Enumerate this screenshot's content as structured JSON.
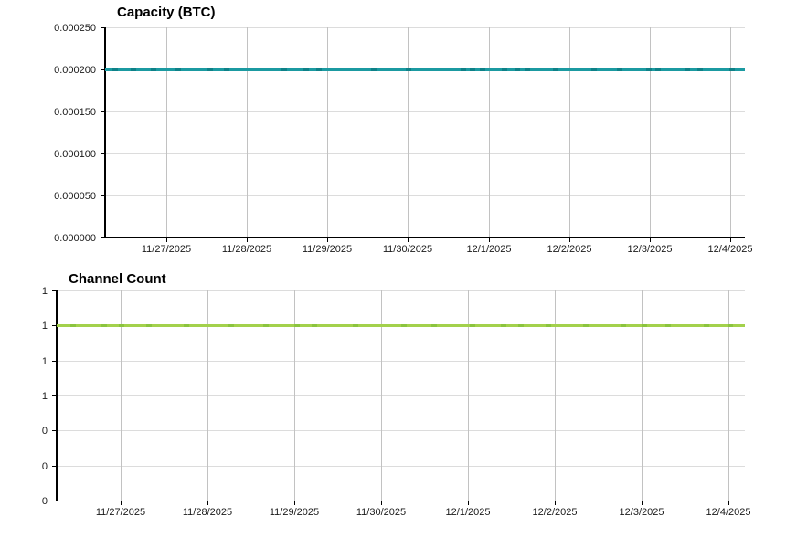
{
  "page": {
    "background": "#ffffff"
  },
  "style": {
    "axis_color": "#000000",
    "tick_label_color": "#1a1a1a",
    "h_grid_color": "#dcdcdc",
    "v_grid_color": "#c2c2c2",
    "title_color": "#000000"
  },
  "chart_data": [
    {
      "type": "line",
      "title": "Capacity (BTC)",
      "xlabel": "",
      "ylabel": "",
      "ylim": [
        0,
        0.00025
      ],
      "grid": true,
      "legend": false,
      "y_tick_labels": [
        "0.000250",
        "0.000200",
        "0.000150",
        "0.000100",
        "0.000050",
        "0.000000"
      ],
      "x_tick_labels": [
        "11/27/2025",
        "11/28/2025",
        "11/29/2025",
        "11/30/2025",
        "12/1/2025",
        "12/2/2025",
        "12/3/2025",
        "12/4/2025"
      ],
      "series": [
        {
          "name": "Capacity (BTC)",
          "constant_value": 0.0002,
          "color": "#1b9aa1",
          "marker_color": "#0e8188",
          "marker_fracs": [
            0.012,
            0.04,
            0.072,
            0.11,
            0.16,
            0.185,
            0.275,
            0.31,
            0.33,
            0.415,
            0.47,
            0.555,
            0.57,
            0.585,
            0.62,
            0.64,
            0.655,
            0.7,
            0.76,
            0.8,
            0.845,
            0.86,
            0.905,
            0.925,
            0.975
          ]
        }
      ]
    },
    {
      "type": "line",
      "title": "Channel Count",
      "xlabel": "",
      "ylabel": "",
      "ylim": [
        0,
        1.2
      ],
      "grid": true,
      "legend": false,
      "y_tick_labels": [
        "1",
        "1",
        "1",
        "1",
        "0",
        "0",
        "0"
      ],
      "x_tick_labels": [
        "11/27/2025",
        "11/28/2025",
        "11/29/2025",
        "11/30/2025",
        "12/1/2025",
        "12/2/2025",
        "12/3/2025",
        "12/4/2025"
      ],
      "series": [
        {
          "name": "Channel Count",
          "constant_value": 1,
          "color": "#a3d14c",
          "marker_color": "#8bc43e",
          "marker_fracs": [
            0.02,
            0.065,
            0.09,
            0.13,
            0.185,
            0.25,
            0.3,
            0.345,
            0.37,
            0.43,
            0.5,
            0.545,
            0.6,
            0.645,
            0.67,
            0.71,
            0.765,
            0.82,
            0.85,
            0.885,
            0.94,
            0.975
          ]
        }
      ]
    }
  ]
}
